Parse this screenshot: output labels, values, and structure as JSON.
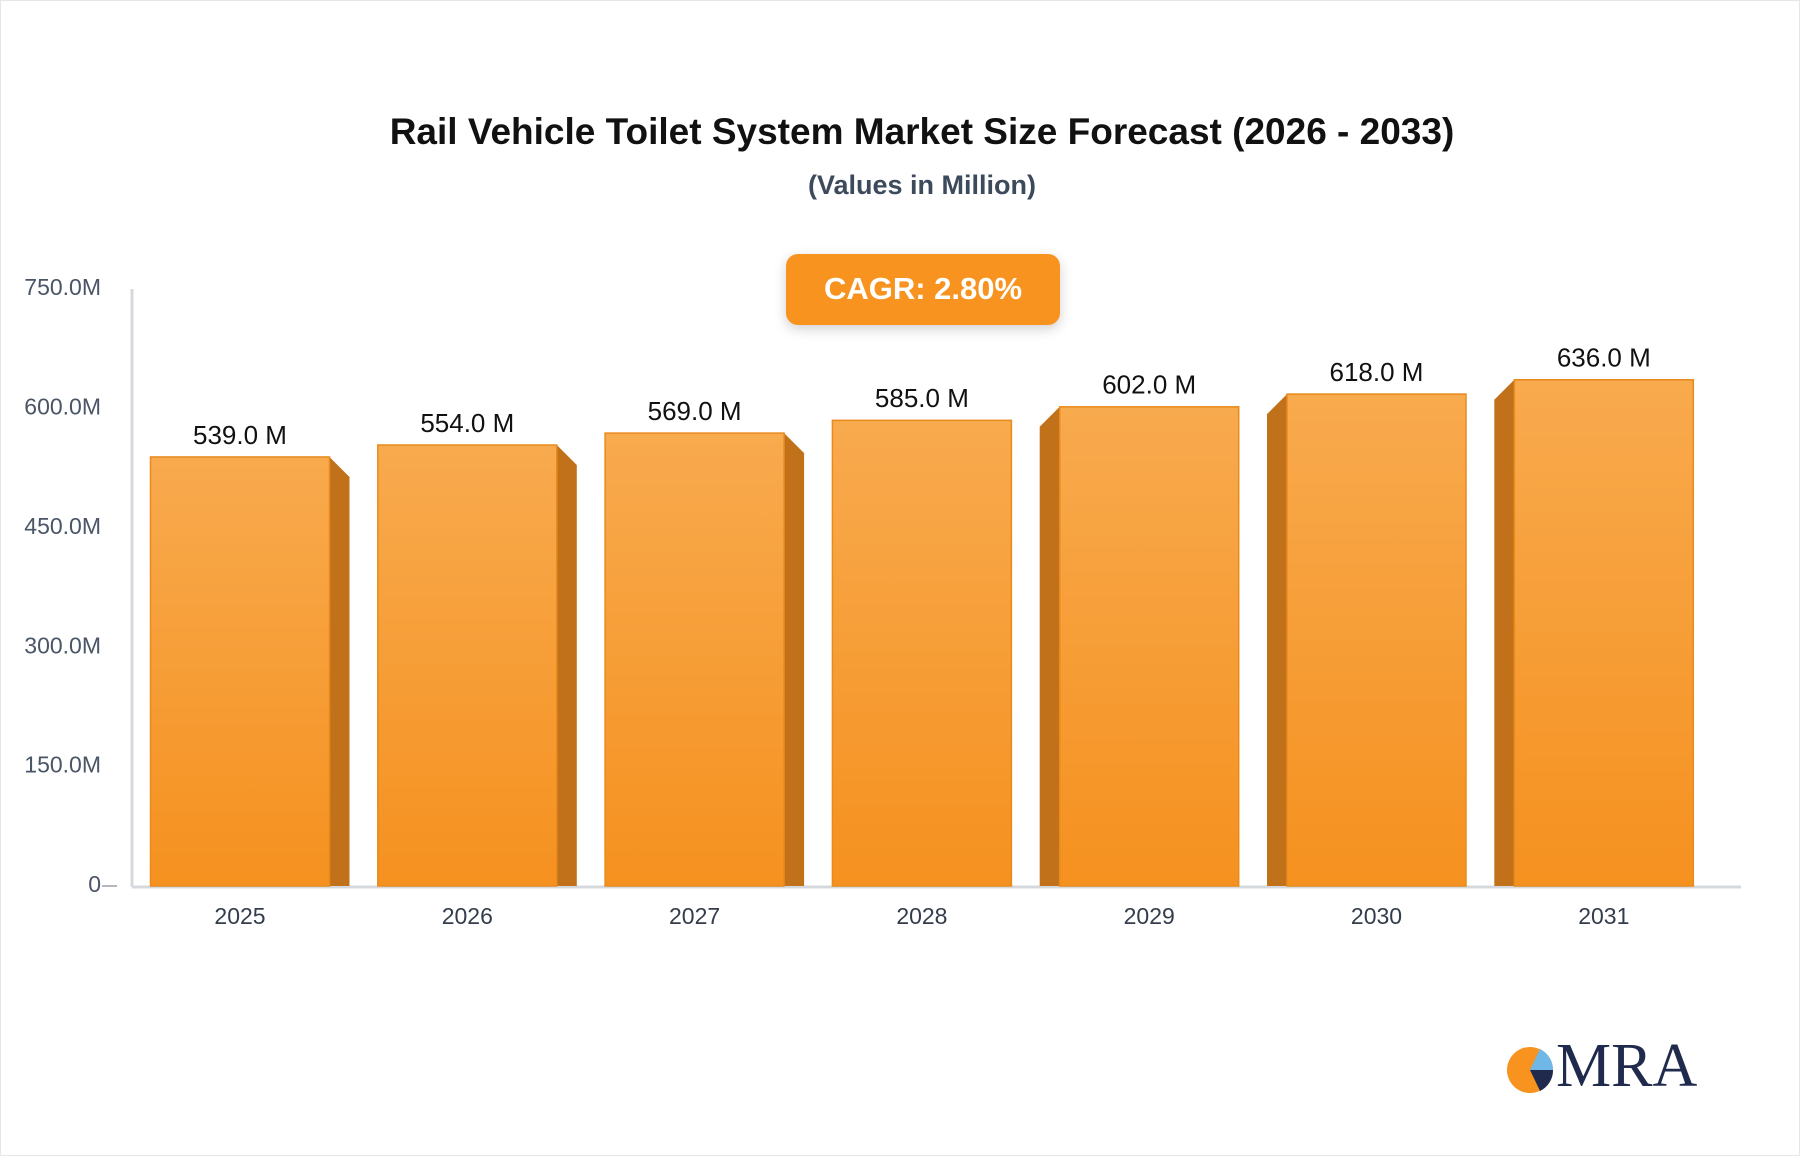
{
  "chart_data": {
    "type": "bar",
    "title": "Rail Vehicle Toilet System Market Size Forecast (2026 - 2033)",
    "subtitle": "(Values in Million)",
    "annotation": "CAGR: 2.80%",
    "categories": [
      "2025",
      "2026",
      "2027",
      "2028",
      "2029",
      "2030",
      "2031"
    ],
    "values": [
      539,
      554,
      569,
      585,
      602,
      618,
      636
    ],
    "value_labels": [
      "539.0 M",
      "554.0 M",
      "569.0 M",
      "585.0 M",
      "602.0 M",
      "618.0 M",
      "636.0 M"
    ],
    "color": "#f6a13c",
    "ylim": [
      0,
      750
    ],
    "yticks": [
      0,
      {
        "value": 150,
        "label": "150.0M"
      },
      {
        "value": 300,
        "label": "300.0M"
      },
      {
        "value": 450,
        "label": "450.0M"
      },
      {
        "value": 600,
        "label": "600.0M"
      },
      {
        "value": 750,
        "label": "750.0M"
      }
    ],
    "grid": false
  },
  "logo": "MRA"
}
